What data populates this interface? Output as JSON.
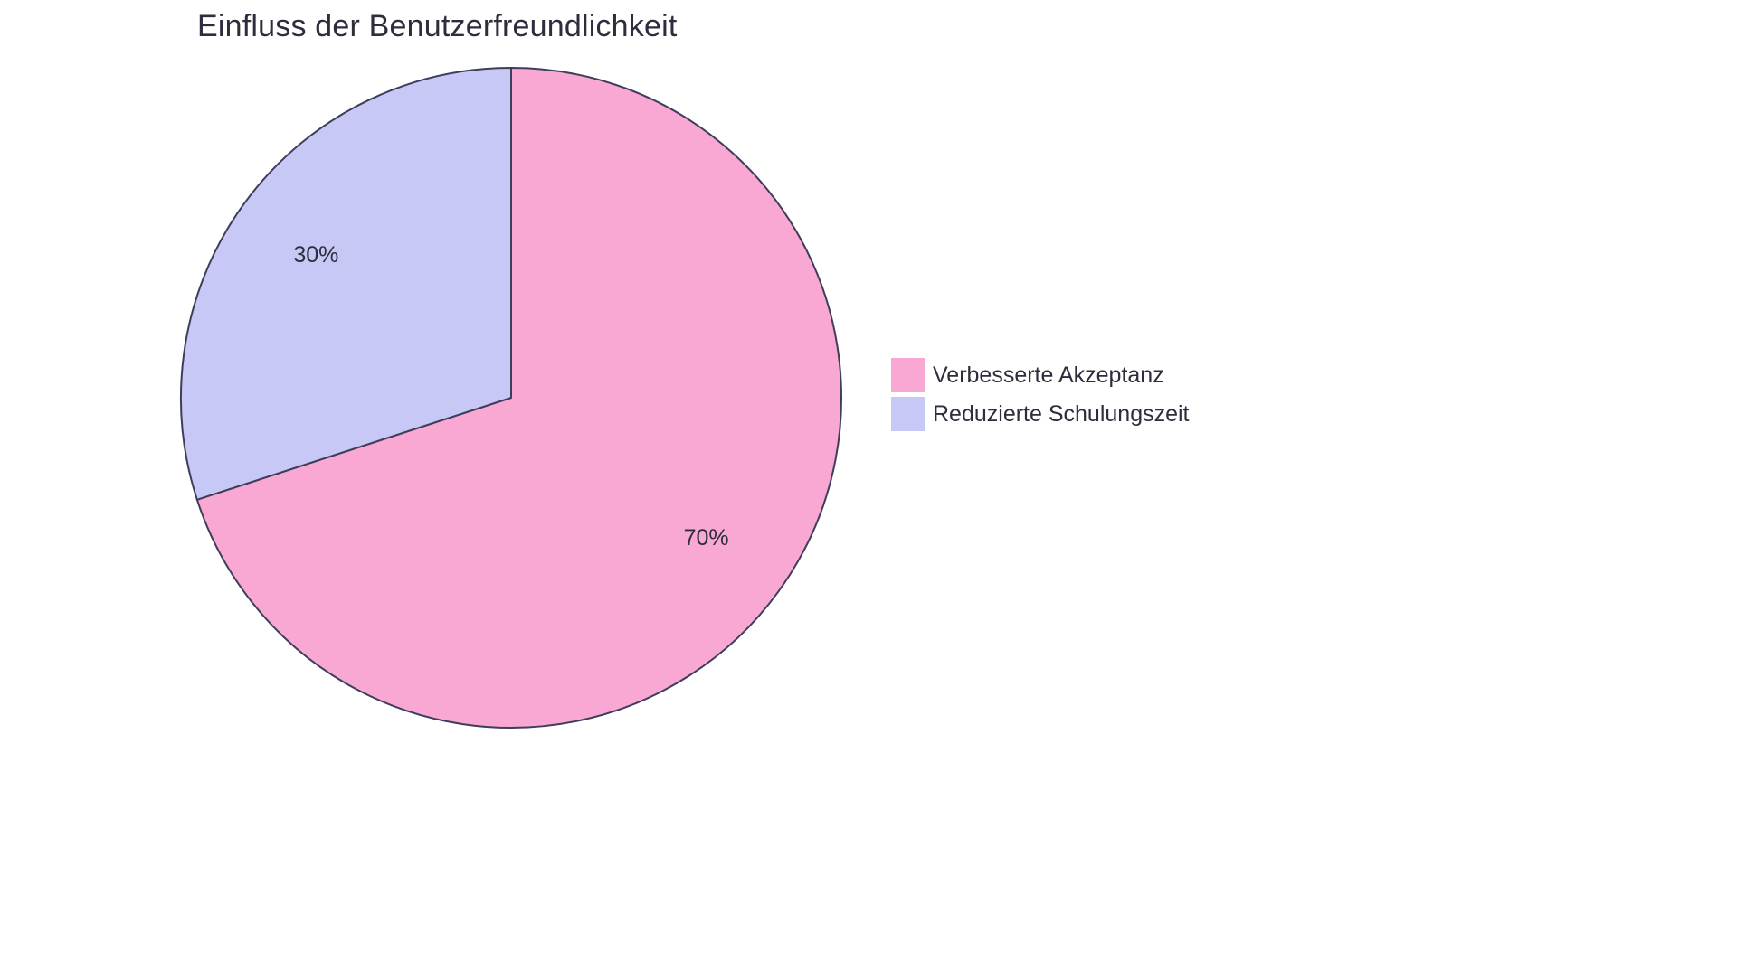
{
  "chart_data": {
    "type": "pie",
    "title": "Einfluss der Benutzerfreundlichkeit",
    "labels": [
      "Verbesserte Akzeptanz",
      "Reduzierte Schulungszeit"
    ],
    "values": [
      70,
      30
    ],
    "percent_labels": [
      "70%",
      "30%"
    ],
    "colors": [
      "#F9A8D4",
      "#C7C8F5"
    ],
    "stroke_color": "#3E3D5C",
    "text_color": "#2d2d3d",
    "start_angle_deg": 0,
    "direction": "clockwise",
    "legend_position": "right",
    "background": "#ffffff"
  }
}
